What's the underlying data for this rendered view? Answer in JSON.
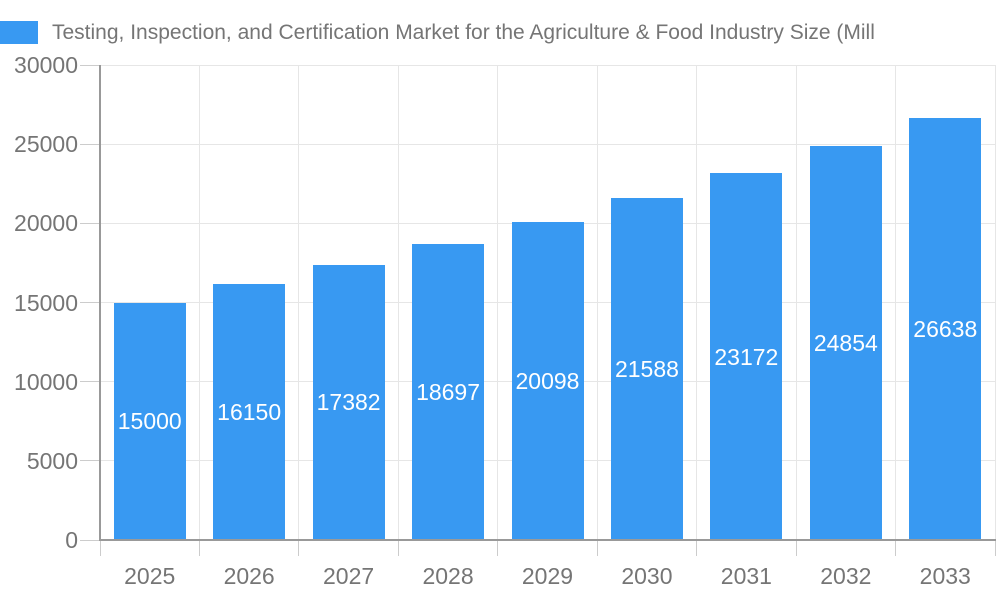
{
  "chart_data": {
    "type": "bar",
    "title": "Testing, Inspection, and Certification Market for the Agriculture & Food Industry Size (Mill",
    "categories": [
      "2025",
      "2026",
      "2027",
      "2028",
      "2029",
      "2030",
      "2031",
      "2032",
      "2033"
    ],
    "values": [
      15000,
      16150,
      17382,
      18697,
      20098,
      21588,
      23172,
      24854,
      26638
    ],
    "bar_value_labels": [
      "15000",
      "16150",
      "17382",
      "18697",
      "20098",
      "21588",
      "23172",
      "24854",
      "26638"
    ],
    "ylim": [
      0,
      30000
    ],
    "yticks": [
      0,
      5000,
      10000,
      15000,
      20000,
      25000,
      30000
    ],
    "ytick_labels": [
      "0",
      "5000",
      "10000",
      "15000",
      "20000",
      "25000",
      "30000"
    ],
    "grid": true,
    "legend_position": "top-left",
    "colors": {
      "bar": "#3899F2",
      "bar_label_text": "#FFFFFF",
      "axis_text": "#757575",
      "title_text": "#757575",
      "gridline": "#E6E6E6",
      "axis_line": "#999999",
      "tick": "#CCCCCC",
      "background": "#FFFFFF"
    }
  }
}
